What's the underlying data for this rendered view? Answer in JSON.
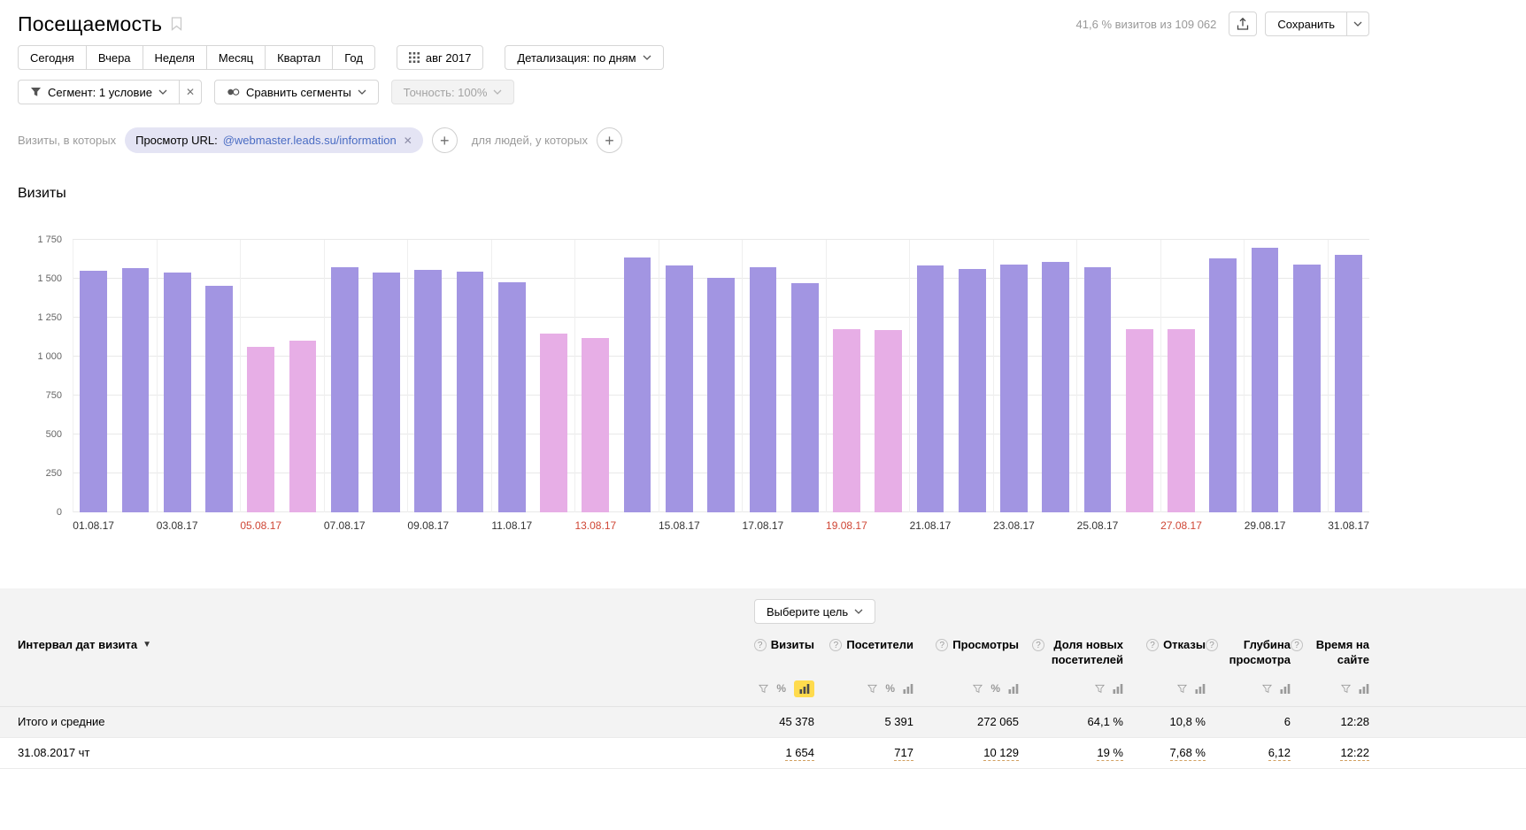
{
  "header": {
    "title": "Посещаемость",
    "visits_share": "41,6 % визитов из 109 062",
    "save_label": "Сохранить"
  },
  "toolbar": {
    "periods": [
      "Сегодня",
      "Вчера",
      "Неделя",
      "Месяц",
      "Квартал",
      "Год"
    ],
    "calendar_label": "авг 2017",
    "detail_label": "Детализация: по дням",
    "segment_label": "Сегмент: 1 условие",
    "compare_label": "Сравнить сегменты",
    "accuracy_label": "Точность: 100%"
  },
  "filters": {
    "visits_label": "Визиты, в которых",
    "chip_prefix": "Просмотр URL:",
    "chip_value": "@webmaster.leads.su/information",
    "people_label": "для людей, у которых"
  },
  "icons": {
    "question_glyph": "?",
    "plus_glyph": "+",
    "close_glyph": "✕",
    "sort_glyph": "▼",
    "percent_glyph": "%"
  },
  "chart_data": {
    "type": "bar",
    "title": "Визиты",
    "x": [
      "01.08.17",
      "02.08.17",
      "03.08.17",
      "04.08.17",
      "05.08.17",
      "06.08.17",
      "07.08.17",
      "08.08.17",
      "09.08.17",
      "10.08.17",
      "11.08.17",
      "12.08.17",
      "13.08.17",
      "14.08.17",
      "15.08.17",
      "16.08.17",
      "17.08.17",
      "18.08.17",
      "19.08.17",
      "20.08.17",
      "21.08.17",
      "22.08.17",
      "23.08.17",
      "24.08.17",
      "25.08.17",
      "26.08.17",
      "27.08.17",
      "28.08.17",
      "29.08.17",
      "30.08.17",
      "31.08.17"
    ],
    "values": [
      1550,
      1570,
      1540,
      1455,
      1060,
      1100,
      1575,
      1540,
      1555,
      1545,
      1475,
      1150,
      1120,
      1635,
      1585,
      1505,
      1575,
      1470,
      1175,
      1170,
      1585,
      1565,
      1590,
      1610,
      1575,
      1175,
      1175,
      1630,
      1700,
      1590,
      1654
    ],
    "weekend_indices": [
      4,
      5,
      11,
      12,
      18,
      19,
      25,
      26
    ],
    "ylim": [
      0,
      1750
    ],
    "yticks": [
      0,
      250,
      500,
      750,
      1000,
      1250,
      1500,
      1750
    ],
    "label_every": 2,
    "grid": true,
    "legend": false,
    "colors": {
      "weekday": "#a295e2",
      "weekend": "#e7aee6",
      "weekend_label": "#cf4534",
      "label": "#333333"
    }
  },
  "table": {
    "goal_button": "Выберите цель",
    "date_header": "Интервал дат визита",
    "columns": [
      {
        "label": "Визиты",
        "icons": [
          "filter-icon",
          "percent-icon",
          "chart-icon"
        ],
        "active_icon": "chart-icon"
      },
      {
        "label": "Посетители",
        "icons": [
          "filter-icon",
          "percent-icon",
          "chart-icon"
        ]
      },
      {
        "label": "Просмотры",
        "icons": [
          "filter-icon",
          "percent-icon",
          "chart-icon"
        ]
      },
      {
        "label": "Доля новых посетителей",
        "icons": [
          "filter-icon",
          "chart-icon"
        ]
      },
      {
        "label": "Отказы",
        "icons": [
          "filter-icon",
          "chart-icon"
        ]
      },
      {
        "label": "Глубина просмотра",
        "icons": [
          "filter-icon",
          "chart-icon"
        ]
      },
      {
        "label": "Время на сайте",
        "icons": [
          "filter-icon",
          "chart-icon"
        ]
      }
    ],
    "rows": [
      {
        "label": "Итого и средние",
        "values": [
          "45 378",
          "5 391",
          "272 065",
          "64,1 %",
          "10,8 %",
          "6",
          "12:28"
        ]
      },
      {
        "label": "31.08.2017 чт",
        "values": [
          "1 654",
          "717",
          "10 129",
          "19 %",
          "7,68 %",
          "6,12",
          "12:22"
        ]
      }
    ]
  }
}
